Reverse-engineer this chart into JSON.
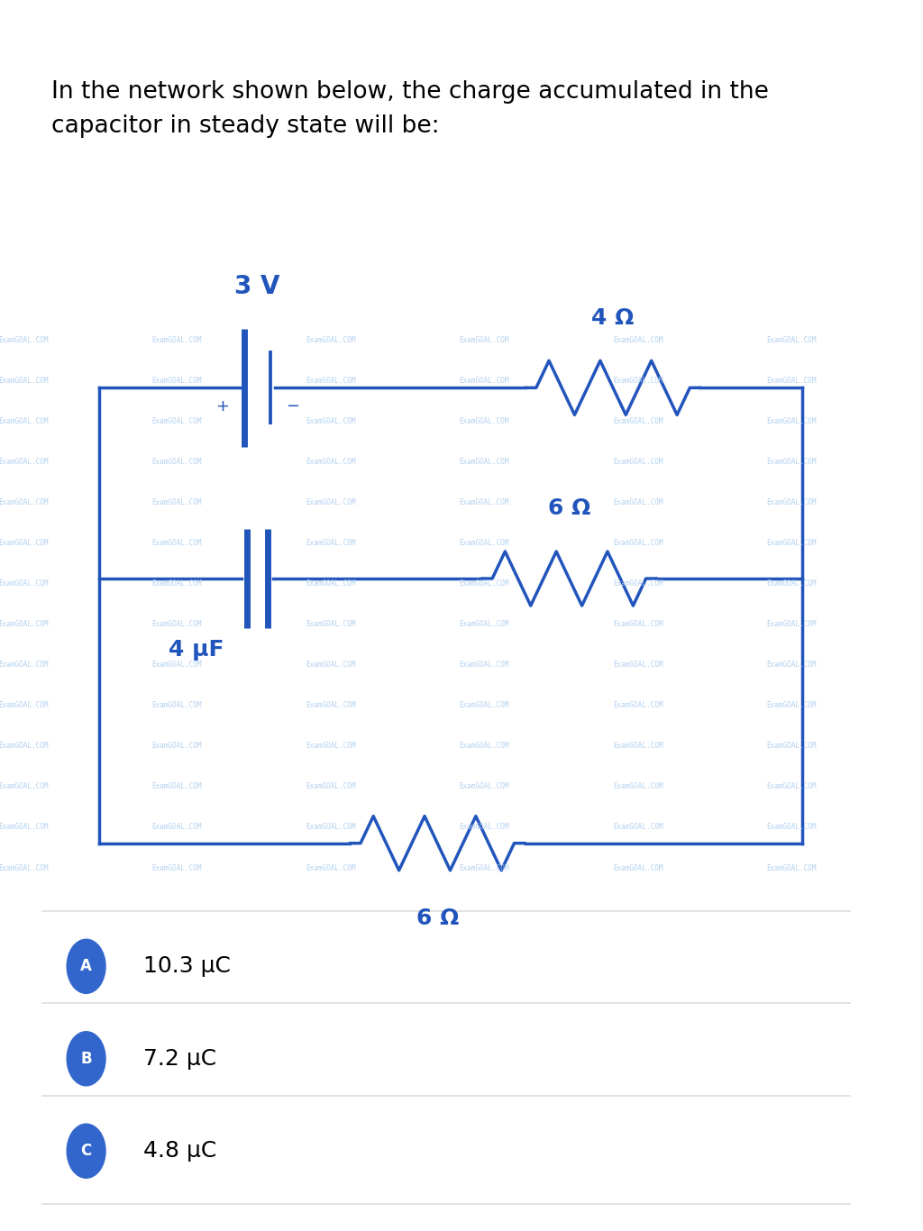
{
  "title_text": "In the network shown below, the charge accumulated in the\ncapacitor in steady state will be:",
  "title_fontsize": 19,
  "title_color": "#000000",
  "circuit_color": "#2255BB",
  "circuit_linewidth": 2.5,
  "watermark_color": "#AACCEE",
  "watermark_text": "ExamGOAL.COM",
  "bg_color": "#FFFFFF",
  "battery_label": "3 V",
  "battery_plus": "+",
  "battery_minus": "−",
  "resistor_top_label": "4 Ω",
  "resistor_mid_label": "6 Ω",
  "resistor_bot_label": "6 Ω",
  "capacitor_label": "4 μF",
  "answer_A": "10.3 μC",
  "answer_B": "7.2 μC",
  "answer_C": "4.8 μC",
  "answer_circle_color": "#3366CC",
  "answer_text_color": "#000000",
  "answer_fontsize": 18,
  "separator_color": "#DDDDDD",
  "label_fontsize": 18,
  "battery_label_fontsize": 20,
  "plus_minus_fontsize": 13
}
